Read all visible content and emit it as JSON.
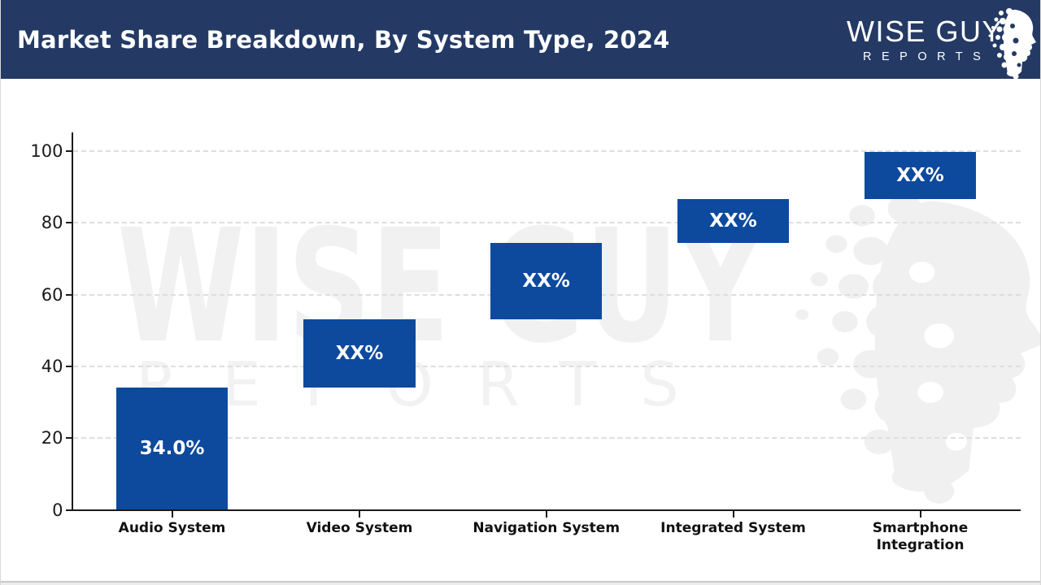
{
  "header": {
    "title": "Market Share Breakdown, By System Type, 2024",
    "bg_color": "#243a65",
    "logo": {
      "wordmark": "WISE GUY",
      "tagline": "REPORTS"
    }
  },
  "watermark": {
    "wordmark": "WISE GUY",
    "tagline": "REPORTS"
  },
  "chart_data": {
    "type": "bar",
    "subtype": "waterfall",
    "title": "Market Share Breakdown, By System Type, 2024",
    "categories": [
      "Audio System",
      "Video System",
      "Navigation System",
      "Integrated System",
      "Smartphone Integration"
    ],
    "bar_labels": [
      "34.0%",
      "XX%",
      "XX%",
      "XX%",
      "XX%"
    ],
    "segments": [
      [
        0,
        34.0
      ],
      [
        34.0,
        53.1
      ],
      [
        53.1,
        74.3
      ],
      [
        74.3,
        86.7
      ],
      [
        86.7,
        99.8
      ]
    ],
    "values_pct": [
      34.0,
      19.1,
      21.2,
      12.4,
      13.1
    ],
    "yticks": [
      0,
      20,
      40,
      60,
      80,
      100
    ],
    "ylim": [
      0,
      105
    ],
    "xlabel": "",
    "ylabel": "",
    "grid": true,
    "grid_style": "dashed",
    "legend": false,
    "bar_color": "#0d4a9e",
    "bar_label_color": "#ffffff",
    "axis_color": "#1a1a1a"
  }
}
